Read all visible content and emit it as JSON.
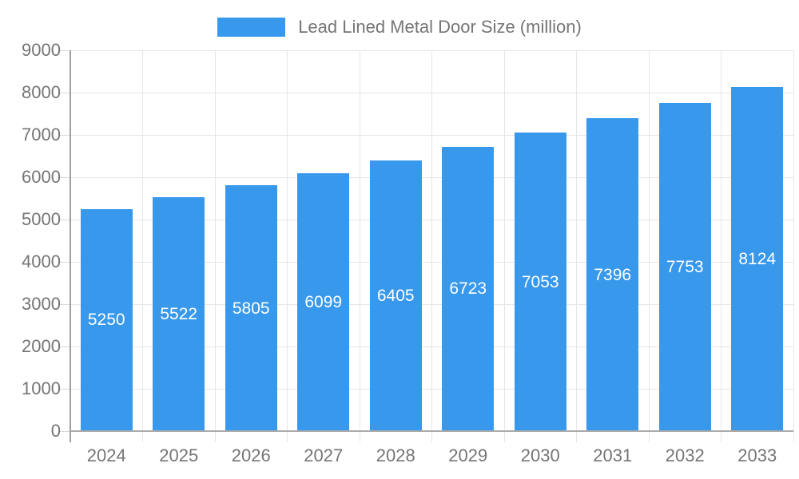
{
  "chart_data": {
    "type": "bar",
    "title": "Lead Lined Metal Door Size (million)",
    "categories": [
      "2024",
      "2025",
      "2026",
      "2027",
      "2028",
      "2029",
      "2030",
      "2031",
      "2032",
      "2033"
    ],
    "series": [
      {
        "name": "Lead Lined Metal Door Size (million)",
        "values": [
          5250,
          5522,
          5805,
          6099,
          6405,
          6723,
          7053,
          7396,
          7753,
          8124
        ]
      }
    ],
    "xlabel": "",
    "ylabel": "",
    "ylim": [
      0,
      9000
    ],
    "y_tick_step": 1000,
    "grid": true,
    "legend_position": "top",
    "bar_labels_visible": true,
    "colors": {
      "bar": "#3898ec",
      "bar_label_text": "#ffffff",
      "axis_text": "#757575",
      "grid_line": "#e6e6e6",
      "axis_line": "#9e9e9e",
      "background": "#ffffff"
    }
  }
}
